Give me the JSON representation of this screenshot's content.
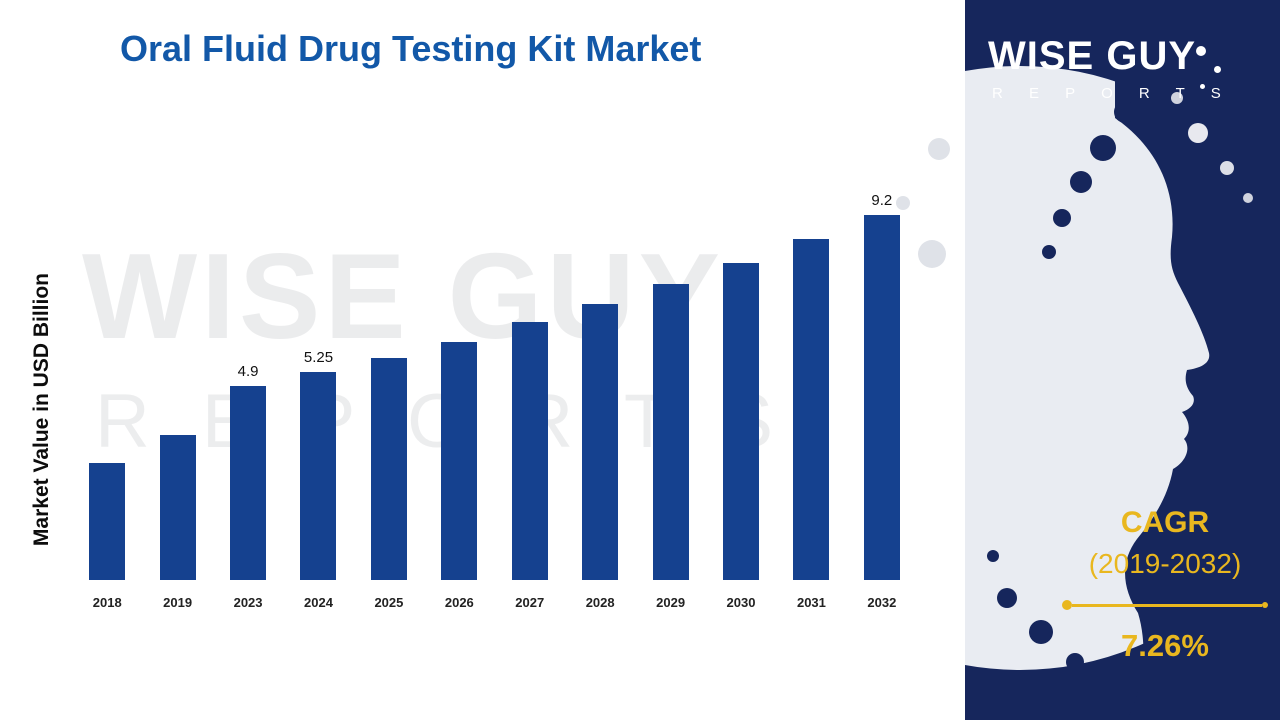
{
  "title": "Oral Fluid Drug Testing Kit Market",
  "watermark": {
    "line1": "WISE GUY",
    "line2": "REPORTS"
  },
  "logo": {
    "name": "WISE GUY",
    "sub": "R E P O R T S"
  },
  "sidebar": {
    "cagr_label": "CAGR",
    "cagr_range": "(2019-2032)",
    "cagr_value": "7.26%"
  },
  "colors": {
    "bar": "#15418f",
    "title": "#1258a8",
    "panel": "#16265c",
    "accent": "#e9b71f",
    "circle": "#e9ecf2"
  },
  "chart_data": {
    "type": "bar",
    "title": "Oral Fluid Drug Testing Kit Market",
    "xlabel": "",
    "ylabel": "Market Value in USD Billion",
    "categories": [
      "2018",
      "2019",
      "2023",
      "2024",
      "2025",
      "2026",
      "2027",
      "2028",
      "2029",
      "2030",
      "2031",
      "2032"
    ],
    "values": [
      2.95,
      3.65,
      4.9,
      5.25,
      5.6,
      6.0,
      6.5,
      6.95,
      7.45,
      8.0,
      8.6,
      9.2
    ],
    "bar_labels": [
      "",
      "",
      "4.9",
      "5.25",
      "",
      "",
      "",
      "",
      "",
      "",
      "",
      "9.2"
    ],
    "ylim": [
      0,
      10
    ],
    "grid": false,
    "legend": false
  }
}
